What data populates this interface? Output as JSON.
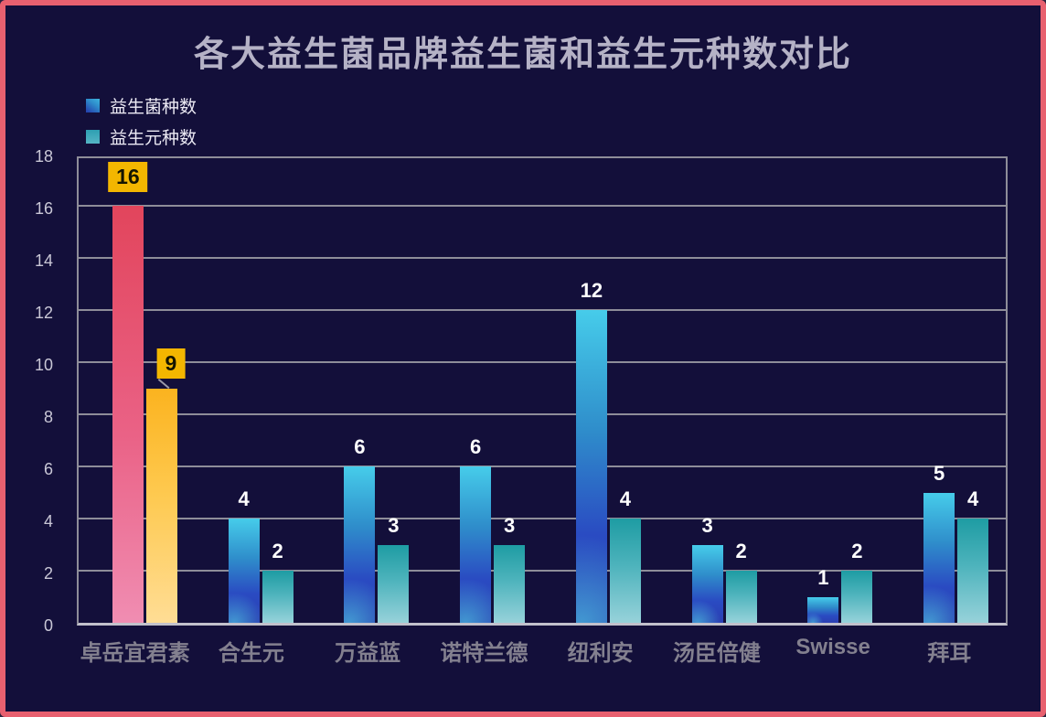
{
  "title": "各大益生菌品牌益生菌和益生元种数对比",
  "legend": {
    "items": [
      {
        "label": "益生菌种数",
        "swatch": "blue-gradient"
      },
      {
        "label": "益生元种数",
        "swatch": "teal"
      }
    ]
  },
  "chart_data": {
    "type": "bar",
    "title": "各大益生菌品牌益生菌和益生元种数对比",
    "categories": [
      "卓岳宜君素",
      "合生元",
      "万益蓝",
      "诺特兰德",
      "纽利安",
      "汤臣倍健",
      "Swisse",
      "拜耳"
    ],
    "series": [
      {
        "name": "益生菌种数",
        "values": [
          16,
          4,
          6,
          6,
          12,
          3,
          1,
          5
        ]
      },
      {
        "name": "益生元种数",
        "values": [
          9,
          2,
          3,
          3,
          4,
          2,
          2,
          4
        ]
      }
    ],
    "ylim": [
      0,
      18
    ],
    "ytick_step": 2,
    "grid": true,
    "legend_position": "top-left",
    "highlight_category": "卓岳宜君素",
    "highlight_label_style": "gold-box",
    "colors": {
      "background": "#130F3A",
      "frame_border": "#E8606F",
      "probiotic_bar_top": "#46CCEA",
      "probiotic_bar_bottom": "#2B3FB2",
      "prebiotic_bar_top": "#1E9CA3",
      "prebiotic_bar_bottom": "#97D2DA",
      "highlight_probiotic_top": "#E2455C",
      "highlight_probiotic_bottom": "#F08DB2",
      "highlight_prebiotic_top": "#FBB31F",
      "highlight_prebiotic_bottom": "#FFDD95",
      "gold_label_box": "#F3B600",
      "gridline": "#8E8D99",
      "title_text": "#B5B2C6",
      "x_label_text": "#83808F",
      "y_label_text": "#C9C7D6",
      "value_label_text": "#FFFFFF"
    }
  }
}
